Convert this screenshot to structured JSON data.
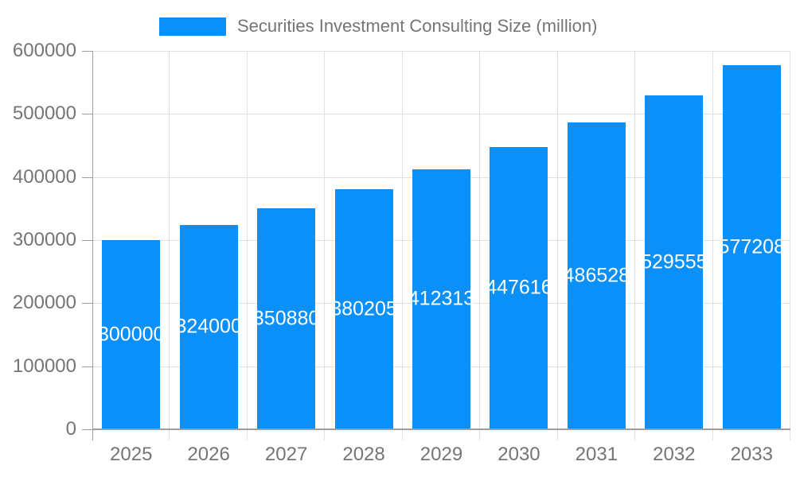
{
  "chart_data": {
    "type": "bar",
    "title": "Securities Investment Consulting Size (million)",
    "categories": [
      "2025",
      "2026",
      "2027",
      "2028",
      "2029",
      "2030",
      "2031",
      "2032",
      "2033"
    ],
    "values": [
      300000,
      324000,
      350880,
      380205,
      412313,
      447616,
      486528,
      529555,
      577208
    ],
    "xlabel": "",
    "ylabel": "",
    "ylim": [
      0,
      600000
    ],
    "yticks": [
      0,
      100000,
      200000,
      300000,
      400000,
      500000,
      600000
    ],
    "grid": true,
    "legend_position": "top",
    "bar_color": "#0b90f9",
    "value_label_color": "#ffffff",
    "axis_line_color": "#9e9e9e",
    "gridline_color": "#e0e0e0",
    "axis_text_color": "#757575"
  }
}
